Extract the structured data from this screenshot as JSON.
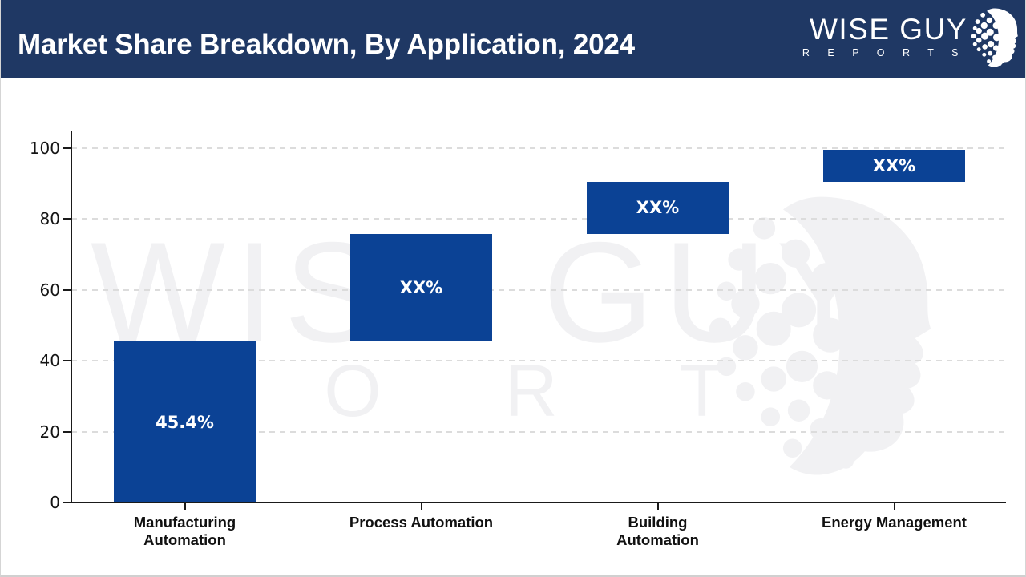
{
  "header": {
    "title": "Market Share Breakdown, By Application, 2024",
    "bg_color": "#1f3864",
    "logo": {
      "name": "WISE GUY",
      "subtitle": "R E P O R T S"
    }
  },
  "watermark": {
    "line1": "WISE GUY",
    "line2": "P O R T S"
  },
  "chart_data": {
    "type": "bar",
    "subtype": "waterfall",
    "title": "Market Share Breakdown, By Application, 2024",
    "categories": [
      "Manufacturing\nAutomation",
      "Process Automation",
      "Building\nAutomation",
      "Energy Management"
    ],
    "series": [
      {
        "name": "Market share (%)",
        "starts": [
          0,
          45.4,
          75.6,
          90.5
        ],
        "ends": [
          45.4,
          75.6,
          90.5,
          99.5
        ],
        "values": [
          45.4,
          30.2,
          14.9,
          9.0
        ],
        "labels": [
          "45.4%",
          "XX%",
          "XX%",
          "XX%"
        ]
      }
    ],
    "xlabel": "",
    "ylabel": "",
    "ylim": [
      0,
      100
    ],
    "yticks": [
      0,
      20,
      40,
      60,
      80,
      100
    ],
    "grid": "horizontal-dashed",
    "legend_position": "none",
    "bar_color": "#0b4295",
    "axis_color": "#1a1a1a",
    "grid_color": "#dcdcdc",
    "bar_label_color": "#ffffff"
  }
}
